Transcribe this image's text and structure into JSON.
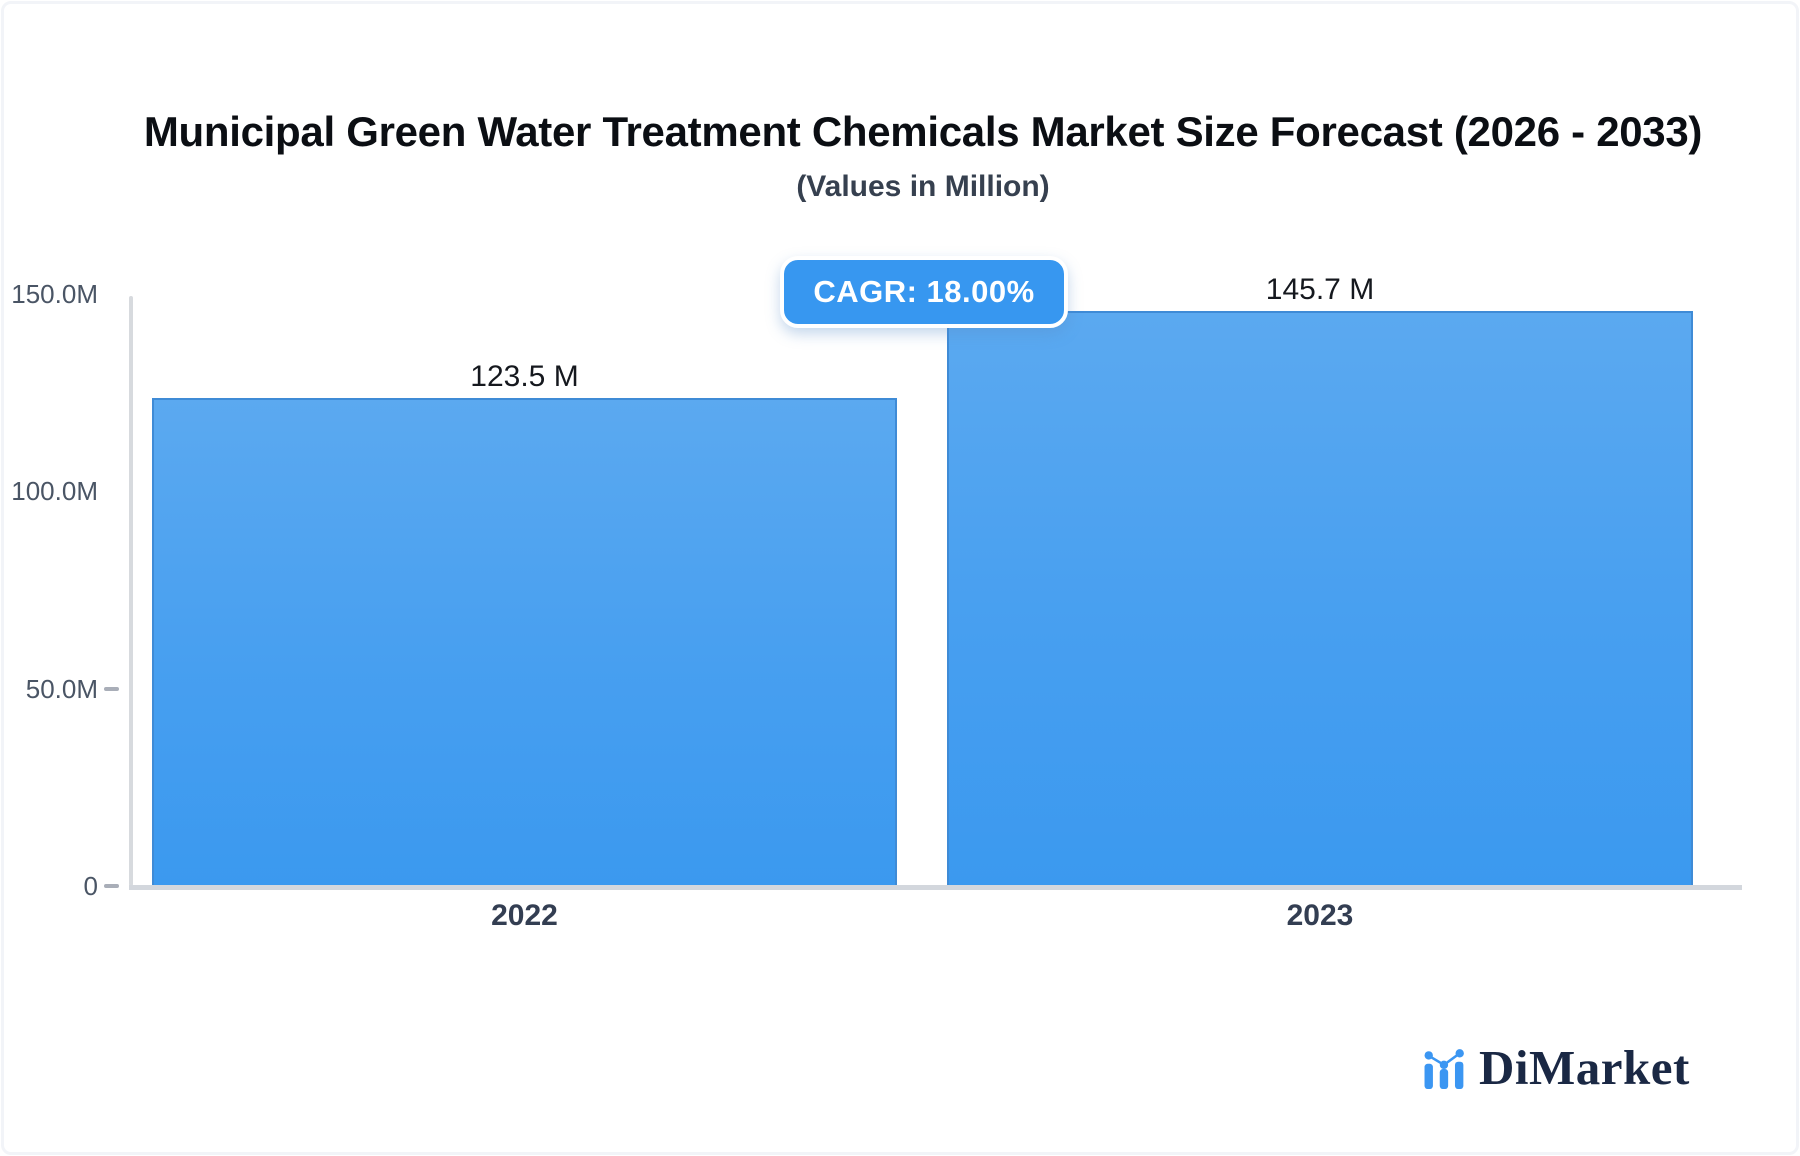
{
  "header": {
    "title": "Municipal Green Water Treatment Chemicals Market Size Forecast (2026 - 2033)",
    "subtitle": "(Values in Million)"
  },
  "badge": {
    "label": "CAGR: 18.00%",
    "cagr_percent": 18.0,
    "bg_color": "#3797f0"
  },
  "chart_data": {
    "type": "bar",
    "title": "Municipal Green Water Treatment Chemicals Market Size Forecast (2026 - 2033)",
    "subtitle": "(Values in Million)",
    "unit": "Million",
    "categories": [
      "2022",
      "2023"
    ],
    "values": [
      123.5,
      145.7
    ],
    "value_labels": [
      "123.5 M",
      "145.7 M"
    ],
    "ylim": [
      0,
      150
    ],
    "yticks": [
      {
        "label": "150.0M",
        "value": 150
      },
      {
        "label": "100.0M",
        "value": 100
      },
      {
        "label": "50.0M",
        "value": 50
      },
      {
        "label": "0",
        "value": 0
      }
    ],
    "grid": false,
    "legend": "none",
    "bar_color_top": "#5ba9f0",
    "bar_color_bottom": "#3b99ef",
    "bar_border_color": "#3f8bd6",
    "axis_line_color": "#d5d8dd"
  },
  "logo": {
    "text": "DiMarket",
    "icon": "mini-bar-chart-icon",
    "icon_color": "#3b96f2",
    "text_color": "#1a2844"
  }
}
